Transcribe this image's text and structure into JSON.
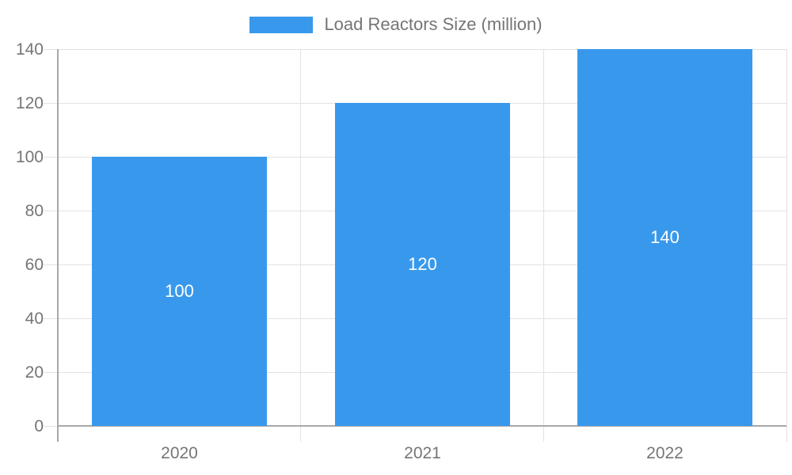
{
  "chart_data": {
    "type": "bar",
    "categories": [
      "2020",
      "2021",
      "2022"
    ],
    "series": [
      {
        "name": "Load Reactors Size (million)",
        "values": [
          100,
          120,
          140
        ]
      }
    ],
    "data_labels": [
      "100",
      "120",
      "140"
    ],
    "y_tick_labels": [
      "0",
      "20",
      "40",
      "60",
      "80",
      "100",
      "120",
      "140"
    ],
    "ylim": [
      0,
      140
    ],
    "ytick_step": 20,
    "grid": true,
    "legend_position": "top",
    "title": "",
    "xlabel": "",
    "ylabel": ""
  },
  "colors": {
    "bar": "#3899EC",
    "grid": "#E2E2E2",
    "axis": "#A8A8A8",
    "text": "#757575",
    "data_label": "#FFFFFF",
    "background": "#FFFFFF"
  }
}
